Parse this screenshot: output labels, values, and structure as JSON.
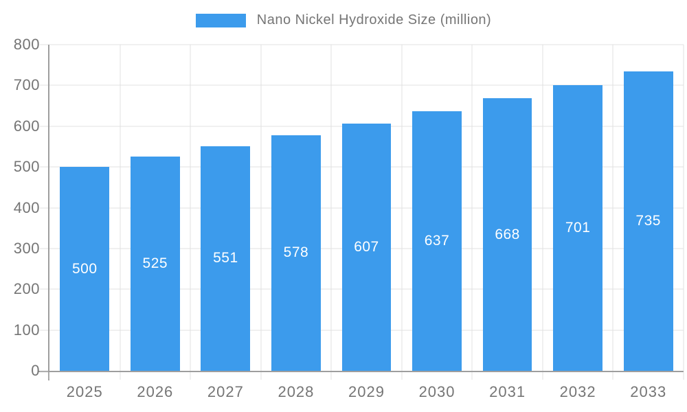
{
  "legend": {
    "label": "Nano Nickel Hydroxide Size (million)"
  },
  "colors": {
    "bar": "#3C9BEC",
    "grid": "#E0E0E0",
    "axis": "#9E9E9E",
    "text": "#757575",
    "bar_label": "#FFFFFF",
    "background": "#FFFFFF"
  },
  "chart_data": {
    "type": "bar",
    "title": "Nano Nickel Hydroxide Size (million)",
    "categories": [
      "2025",
      "2026",
      "2027",
      "2028",
      "2029",
      "2030",
      "2031",
      "2032",
      "2033"
    ],
    "values": [
      500,
      525,
      551,
      578,
      607,
      637,
      668,
      701,
      735
    ],
    "xlabel": "",
    "ylabel": "",
    "ylim": [
      0,
      800
    ],
    "ytick_step": 100,
    "grid": true,
    "legend_position": "top-center",
    "bar_label_position": "inside-center",
    "bar_label_color": "#FFFFFF"
  }
}
